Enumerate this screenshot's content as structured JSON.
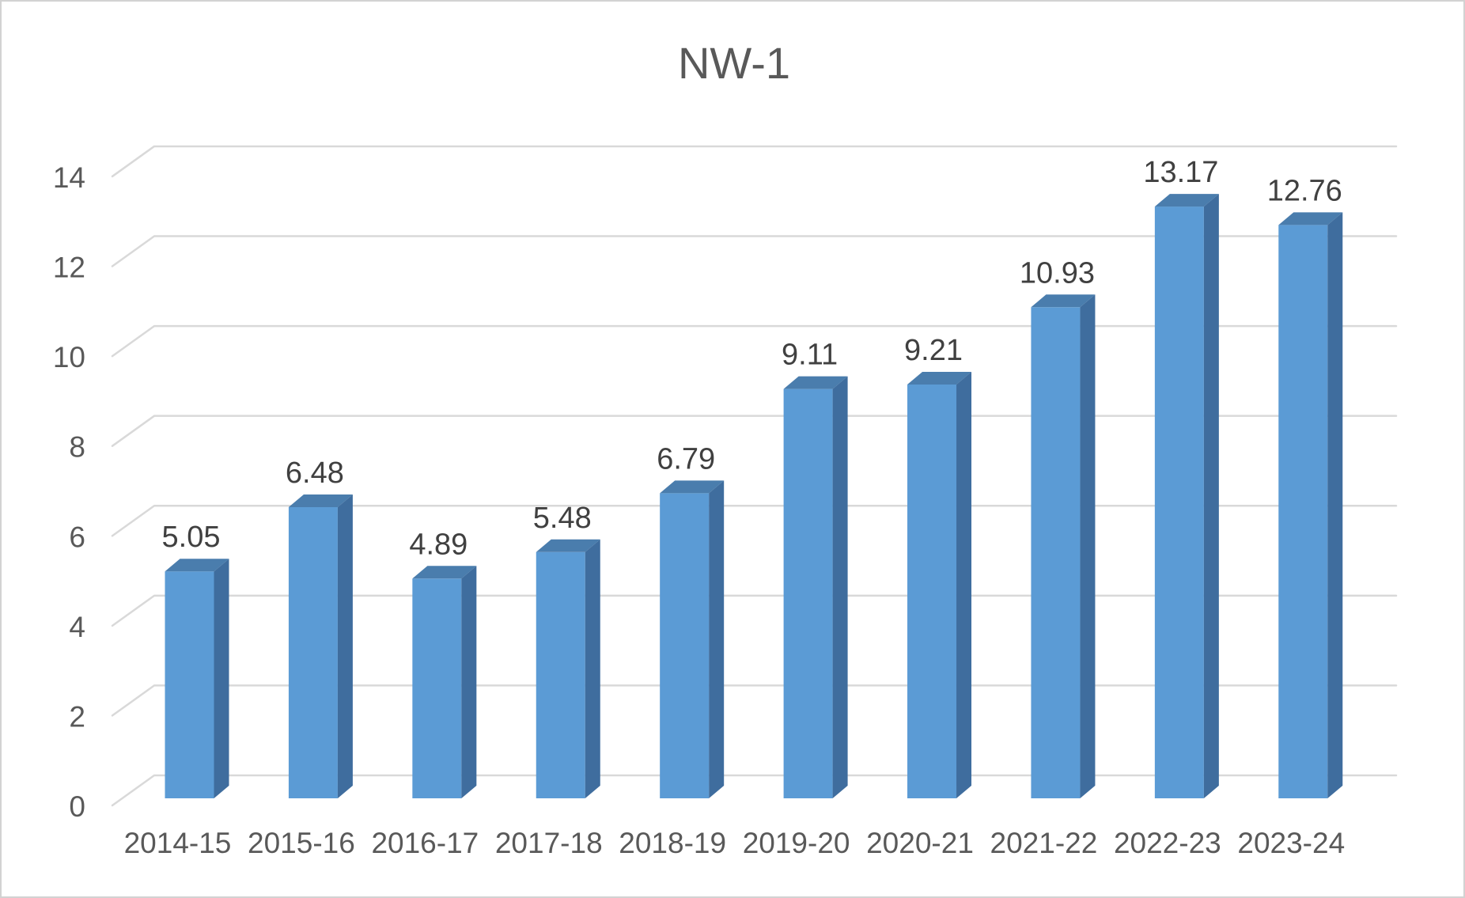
{
  "chart_data": {
    "type": "bar",
    "style": "3d-clustered-column",
    "title": "NW-1",
    "categories": [
      "2014-15",
      "2015-16",
      "2016-17",
      "2017-18",
      "2018-19",
      "2019-20",
      "2020-21",
      "2021-22",
      "2022-23",
      "2023-24"
    ],
    "values": [
      5.05,
      6.48,
      4.89,
      5.48,
      6.79,
      9.11,
      9.21,
      10.93,
      13.17,
      12.76
    ],
    "data_labels": [
      "5.05",
      "6.48",
      "4.89",
      "5.48",
      "6.79",
      "9.11",
      "9.21",
      "10.93",
      "13.17",
      "12.76"
    ],
    "xlabel": "",
    "ylabel": "",
    "ylim": [
      0,
      14
    ],
    "yticks": [
      "0",
      "2",
      "4",
      "6",
      "8",
      "10",
      "12",
      "14"
    ],
    "ytick_values": [
      0,
      2,
      4,
      6,
      8,
      10,
      12,
      14
    ],
    "grid": "horizontal-3d",
    "legend": "none",
    "colors": {
      "bar_front": "#5B9BD5",
      "bar_top": "#4A7DAD",
      "bar_side": "#3F6D9E",
      "gridline": "#D9D9D9",
      "axis_text": "#595959",
      "title_text": "#595959",
      "data_label_text": "#404040",
      "background": "#FFFFFF",
      "frame_border": "#D2D2D2"
    }
  }
}
